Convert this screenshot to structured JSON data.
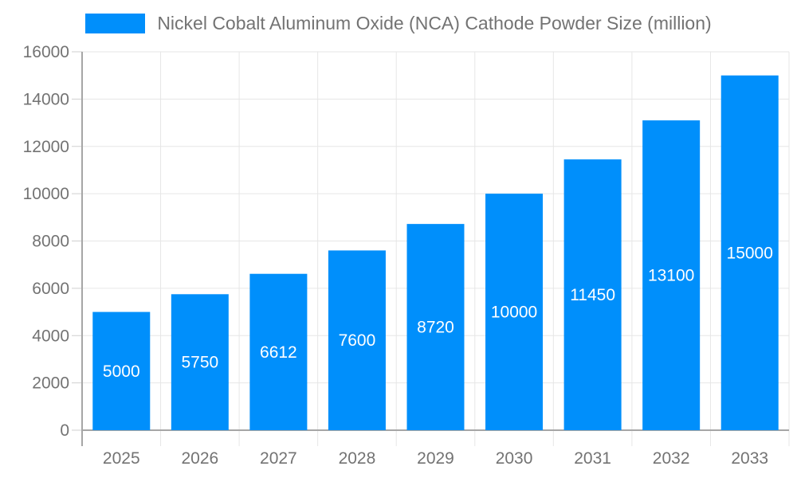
{
  "legend": {
    "label": "Nickel Cobalt Aluminum Oxide (NCA) Cathode Powder Size (million)"
  },
  "chart_data": {
    "type": "bar",
    "title": "Nickel Cobalt Aluminum Oxide (NCA) Cathode Powder Size (million)",
    "categories": [
      "2025",
      "2026",
      "2027",
      "2028",
      "2029",
      "2030",
      "2031",
      "2032",
      "2033"
    ],
    "values": [
      5000,
      5750,
      6612,
      7600,
      8720,
      10000,
      11450,
      13100,
      15000
    ],
    "xlabel": "",
    "ylabel": "",
    "ylim": [
      0,
      16000
    ],
    "ytick_step": 2000,
    "grid": true,
    "legend_position": "top-center",
    "bar_color": "#008FFB",
    "bar_label_color": "#FFFFFF",
    "axis_text_color": "#737373",
    "axis_line_color": "#A6A6A6",
    "grid_color": "#E6E6E6",
    "tick_color": "#CFCFCF",
    "background": "#FFFFFF"
  }
}
